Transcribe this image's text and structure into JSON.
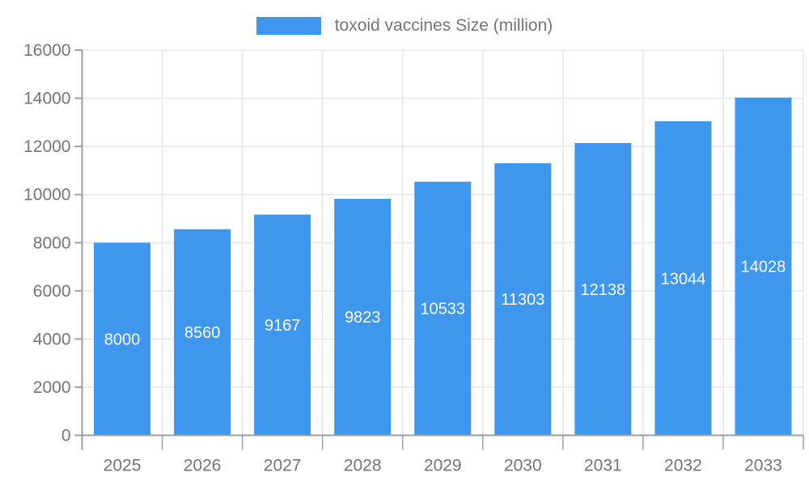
{
  "legend": {
    "label": "toxoid vaccines Size (million)",
    "position": "top-center"
  },
  "chart_data": {
    "type": "bar",
    "title": "",
    "categories": [
      "2025",
      "2026",
      "2027",
      "2028",
      "2029",
      "2030",
      "2031",
      "2032",
      "2033"
    ],
    "series": [
      {
        "name": "toxoid vaccines Size (million)",
        "values": [
          8000,
          8560,
          9167,
          9823,
          10533,
          11303,
          12138,
          13044,
          14028
        ]
      }
    ],
    "value_labels": [
      8000,
      8560,
      9167,
      9823,
      10533,
      11303,
      12138,
      13044,
      14028
    ],
    "value_label_position": "inside-center",
    "xlabel": "",
    "ylabel": "",
    "ylim": [
      0,
      16000
    ],
    "yticks": [
      0,
      2000,
      4000,
      6000,
      8000,
      10000,
      12000,
      14000,
      16000
    ],
    "grid": "horizontal and vertical light gridlines",
    "legend_position": "top",
    "colors": {
      "bar": "#3E97EC",
      "value_label_text": "#FFFFFF",
      "axis_line": "#9E9E9E",
      "grid_line": "#E7E7E7",
      "tick_text": "#757575",
      "background": "#FFFFFF"
    }
  }
}
